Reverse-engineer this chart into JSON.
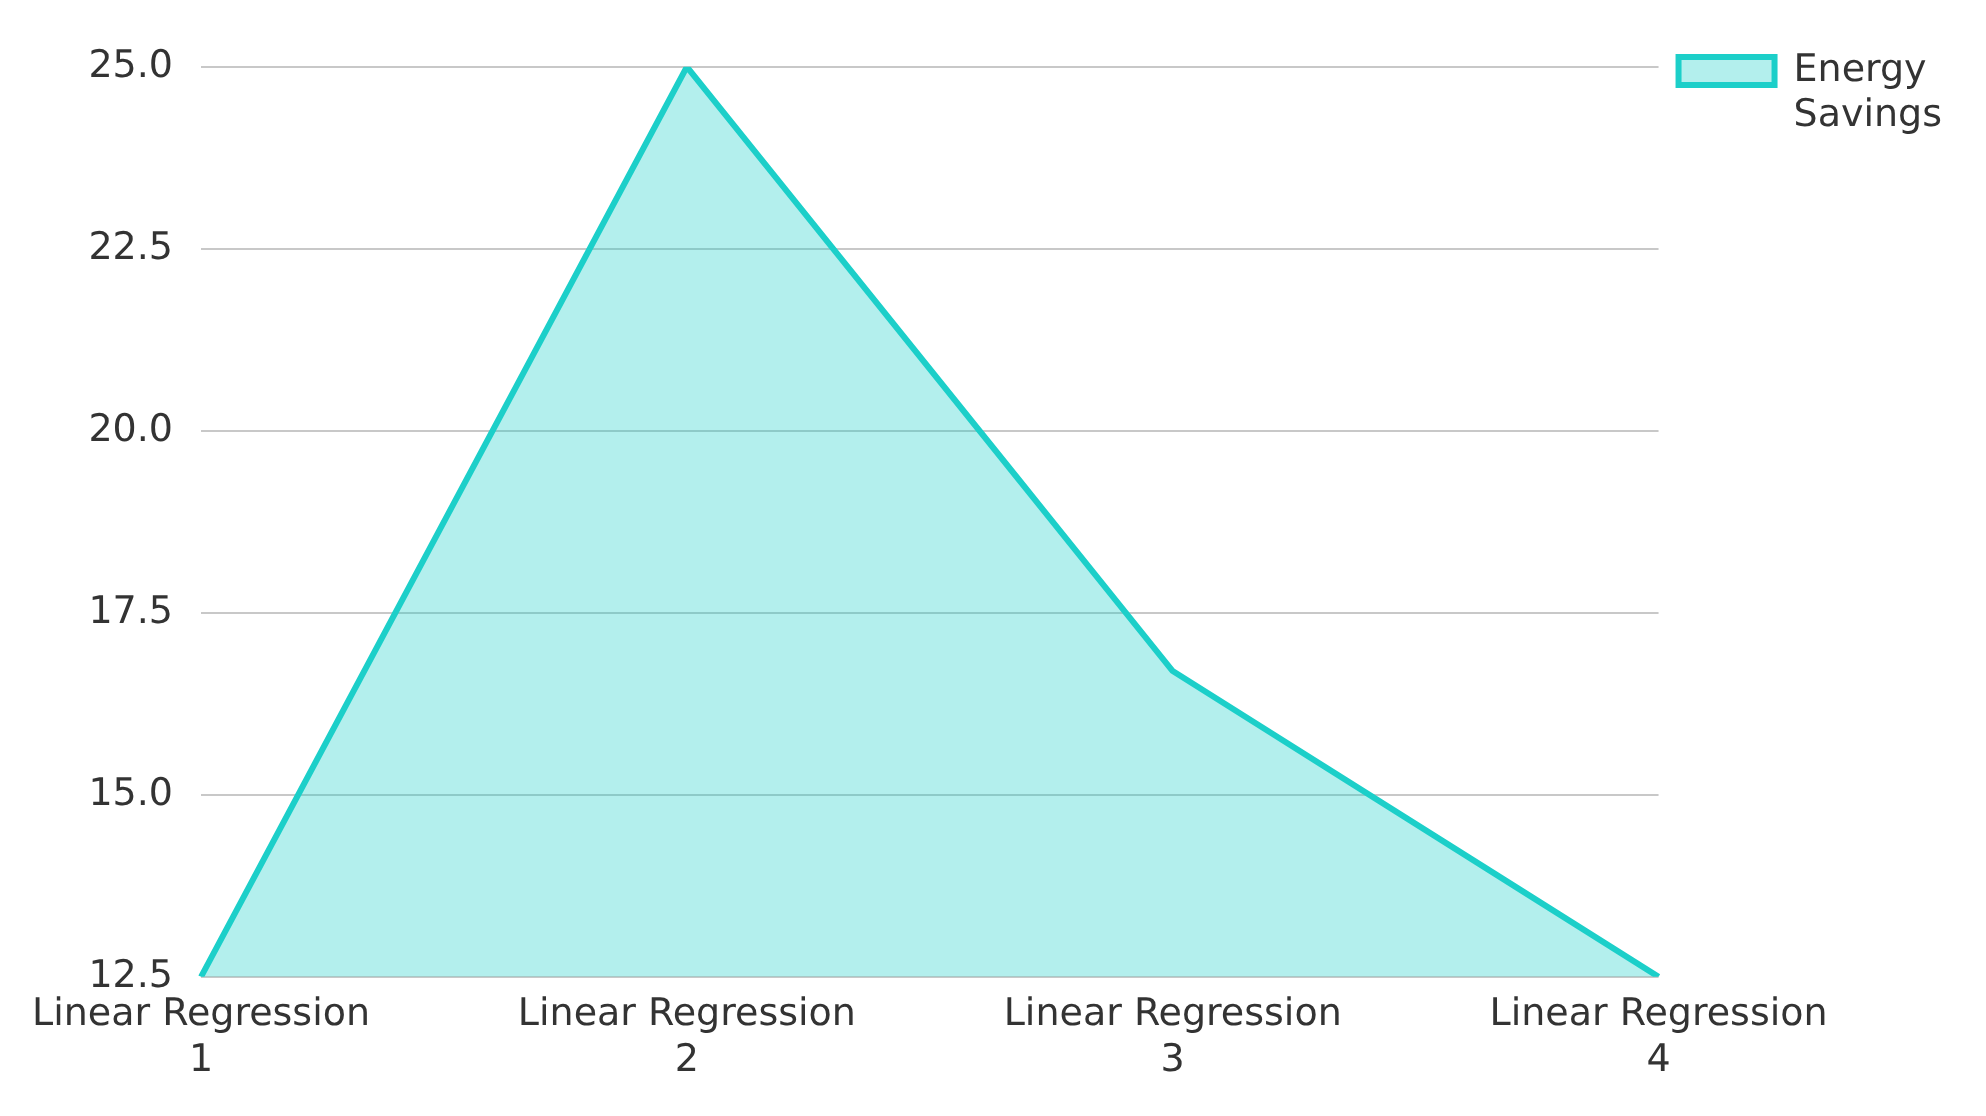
{
  "chart_data": {
    "type": "area",
    "categories": [
      "Linear Regression 1",
      "Linear Regression 2",
      "Linear Regression 3",
      "Linear Regression 4"
    ],
    "series": [
      {
        "name": "Energy Savings",
        "color": "#1ccfc9",
        "values": [
          12.5,
          25.0,
          16.7,
          12.5
        ]
      }
    ],
    "ylim": [
      12.5,
      25.0
    ],
    "yticks": [
      {
        "value": 12.5,
        "label": "12.5"
      },
      {
        "value": 15,
        "label": "15.0"
      },
      {
        "value": 17.5,
        "label": "17.5"
      },
      {
        "value": 20,
        "label": "20.0"
      },
      {
        "value": 22.5,
        "label": "22.5"
      },
      {
        "value": 25,
        "label": "25.0"
      }
    ],
    "grid": "y",
    "legend": "top right",
    "marker": "none"
  }
}
